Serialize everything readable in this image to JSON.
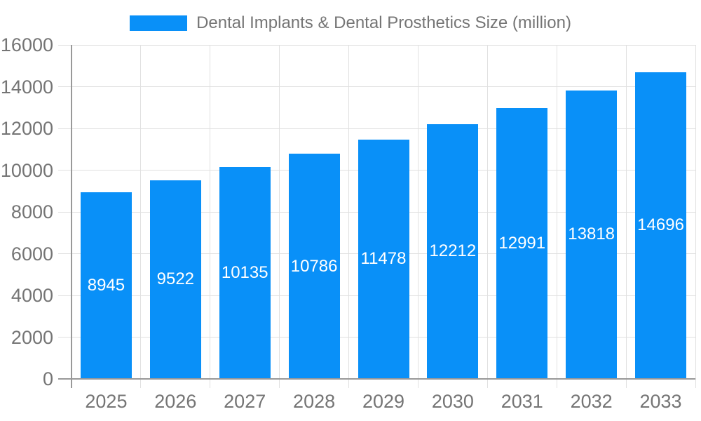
{
  "chart_data": {
    "type": "bar",
    "title": "Dental Implants & Dental Prosthetics Size (million)",
    "categories": [
      "2025",
      "2026",
      "2027",
      "2028",
      "2029",
      "2030",
      "2031",
      "2032",
      "2033"
    ],
    "values": [
      8945,
      9522,
      10135,
      10786,
      11478,
      12212,
      12991,
      13818,
      14696
    ],
    "series": [
      {
        "name": "Dental Implants & Dental Prosthetics Size (million)",
        "values": [
          8945,
          9522,
          10135,
          10786,
          11478,
          12212,
          12991,
          13818,
          14696
        ]
      }
    ],
    "xlabel": "",
    "ylabel": "",
    "ylim": [
      0,
      16000
    ],
    "yticks": [
      0,
      2000,
      4000,
      6000,
      8000,
      10000,
      12000,
      14000,
      16000
    ],
    "grid": true,
    "legend_position": "top",
    "value_labels_inside_bars": true,
    "colors": {
      "bar": "#0990f8",
      "value_label": "#ffffff",
      "text": "#757575",
      "axis": "#999999",
      "grid": "#e0e0e0",
      "background": "#ffffff"
    }
  }
}
